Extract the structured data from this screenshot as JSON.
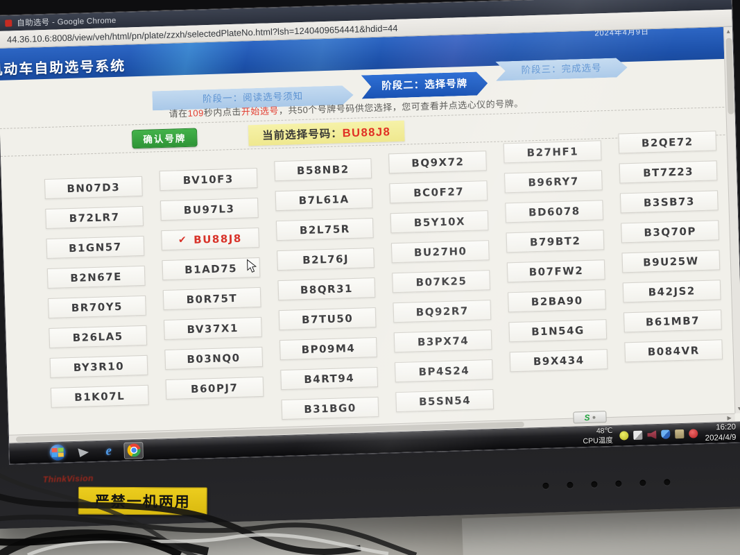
{
  "window": {
    "title": "自助选号 - Google Chrome",
    "url": "44.36.10.6:8008/view/veh/html/pn/plate/zzxh/selectedPlateNo.html?lsh=1240409654441&hdid=44"
  },
  "header": {
    "title": "机动车自助选号系统",
    "corner_date": "2024年4月9日"
  },
  "stages": [
    {
      "label": "阶段一：阅读选号须知",
      "active": false
    },
    {
      "label": "阶段二：选择号牌",
      "active": true
    },
    {
      "label": "阶段三：完成选号",
      "active": false
    }
  ],
  "instruction": {
    "prefix": "请在",
    "seconds": "109",
    "mid": "秒内点击",
    "action": "开始选号",
    "suffix": "，共50个号牌号码供您选择，您可查看并点选心仪的号牌。"
  },
  "confirm_button_label": "确认号牌",
  "selection": {
    "label": "当前选择号码：",
    "value": "BU88J8"
  },
  "plates": {
    "selected": "BU88J8",
    "columns": [
      [
        "BN07D3",
        "B72LR7",
        "B1GN57",
        "B2N67E",
        "BR70Y5",
        "B26LA5",
        "BY3R10",
        "B1K07L"
      ],
      [
        "BV10F3",
        "BU97L3",
        "BU88J8",
        "B1AD75",
        "B0R75T",
        "BV37X1",
        "B03NQ0",
        "B60PJ7"
      ],
      [
        "B58NB2",
        "B7L61A",
        "B2L75R",
        "B2L76J",
        "B8QR31",
        "B7TU50",
        "BP09M4",
        "B4RT94",
        "B31BG0"
      ],
      [
        "BQ9X72",
        "BC0F27",
        "B5Y10X",
        "BU27H0",
        "B07K25",
        "BQ92R7",
        "B3PX74",
        "BP4S24",
        "B5SN54"
      ],
      [
        "B27HF1",
        "B96RY7",
        "BD6078",
        "B79BT2",
        "B07FW2",
        "B2BA90",
        "B1N54G",
        "B9X434"
      ],
      [
        "B2QE72",
        "BT7Z23",
        "B3SB73",
        "B3Q70P",
        "B9U25W",
        "B42JS2",
        "B61MB7",
        "B084VR"
      ]
    ]
  },
  "ime": {
    "label": "S"
  },
  "taskbar": {
    "cpu_temp": "48℃",
    "cpu_label": "CPU温度",
    "time": "16:20",
    "date": "2024/4/9"
  },
  "monitor": {
    "brand": "ThinkVision",
    "sticker": "严禁一机两用"
  }
}
